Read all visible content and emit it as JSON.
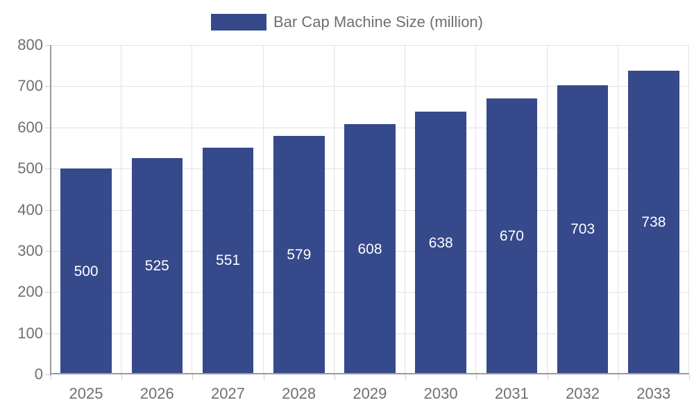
{
  "chart_data": {
    "type": "bar",
    "title": "Bar Cap Machine Size (million)",
    "categories": [
      "2025",
      "2026",
      "2027",
      "2028",
      "2029",
      "2030",
      "2031",
      "2032",
      "2033"
    ],
    "values": [
      500,
      525,
      551,
      579,
      608,
      638,
      670,
      703,
      738
    ],
    "series": [
      {
        "name": "Bar Cap Machine Size (million)",
        "values": [
          500,
          525,
          551,
          579,
          608,
          638,
          670,
          703,
          738
        ]
      }
    ],
    "xlabel": "",
    "ylabel": "",
    "ylim": [
      0,
      800
    ],
    "yticks": [
      0,
      100,
      200,
      300,
      400,
      500,
      600,
      700,
      800
    ],
    "grid": true,
    "legend_position": "top-center",
    "bar_value_labels": "centered-white",
    "colors": {
      "bar": "#36498b",
      "grid": "#e2e2e2",
      "axis": "#9a9a9a",
      "tick": "#cfcfcf",
      "text": "#6f6f6f",
      "bar_label_text": "#ffffff",
      "background": "#ffffff"
    }
  }
}
